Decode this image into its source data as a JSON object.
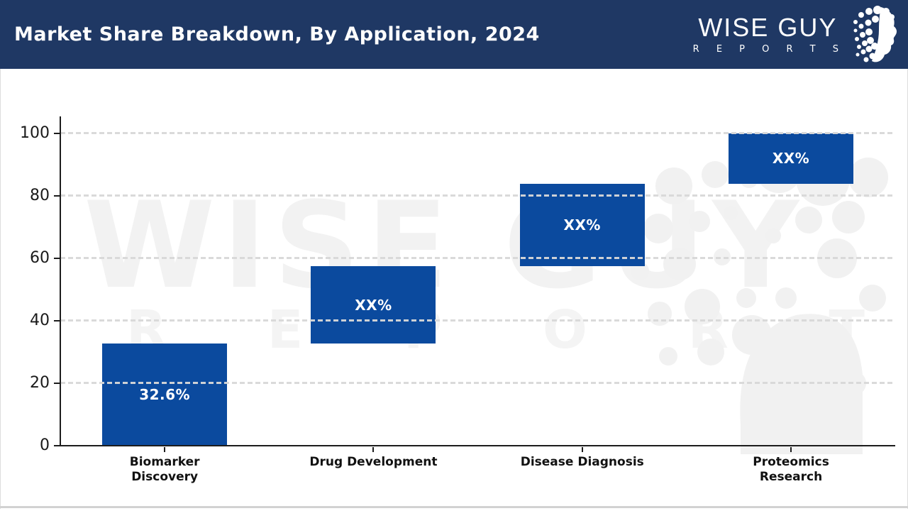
{
  "header": {
    "title": "Market Share Breakdown, By Application, 2024",
    "bg_color": "#1f3864",
    "logo": {
      "wordmark": "WISE GUY",
      "subtitle": "R E P O R T S"
    }
  },
  "watermark": {
    "line1": "WISE GUY",
    "line2": "R E P O R T S"
  },
  "chart_data": {
    "type": "bar",
    "subtype": "waterfall",
    "title": "Market Share Breakdown, By Application, 2024",
    "xlabel": "",
    "ylabel": "",
    "categories": [
      "Biomarker\nDiscovery",
      "Drug Development",
      "Disease Diagnosis",
      "Proteomics\nResearch"
    ],
    "segments": [
      {
        "category": "Biomarker\nDiscovery",
        "start": 0,
        "end": 32.6,
        "label": "32.6%"
      },
      {
        "category": "Drug Development",
        "start": 32.6,
        "end": 57.4,
        "label": "XX%"
      },
      {
        "category": "Disease Diagnosis",
        "start": 57.4,
        "end": 83.9,
        "label": "XX%"
      },
      {
        "category": "Proteomics\nResearch",
        "start": 83.9,
        "end": 100,
        "label": "XX%"
      }
    ],
    "y_ticks": [
      0,
      20,
      40,
      60,
      80,
      100
    ],
    "ylim": [
      0,
      105
    ],
    "bar_color": "#0b4a9e",
    "grid": "horizontal dashed, drawn over bars",
    "legend": "none"
  }
}
